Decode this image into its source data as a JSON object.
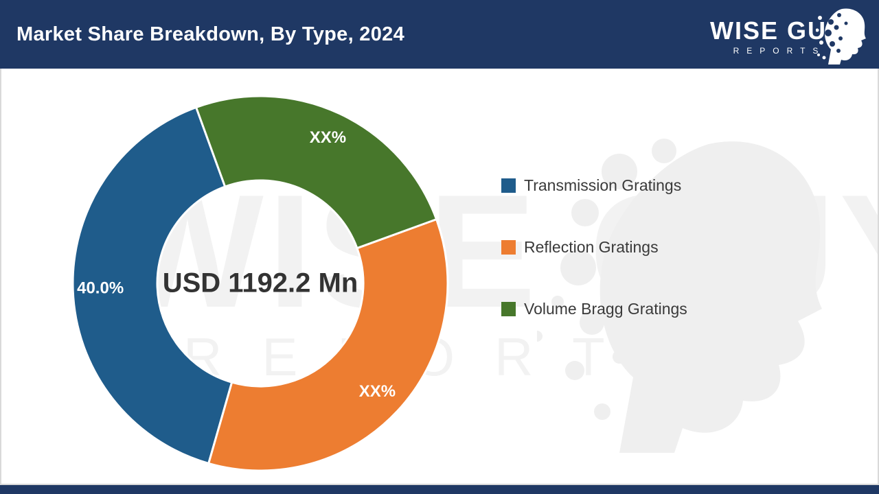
{
  "header": {
    "title": "Market Share Breakdown, By Type, 2024",
    "bg_color": "#1f3864",
    "logo": {
      "line1": "WISE GUY",
      "line2": "REPORTS"
    }
  },
  "watermark": {
    "line1": "WISE GUY",
    "line2": "REPORTS"
  },
  "chart_data": {
    "type": "pie",
    "donut": true,
    "title": "Market Share Breakdown, By Type, 2024",
    "center_label": "USD 1192.2 Mn",
    "categories": [
      "Transmission Gratings",
      "Reflection Gratings",
      "Volume Bragg Gratings"
    ],
    "values": [
      40.0,
      35.0,
      25.0
    ],
    "slice_labels": [
      "40.0%",
      "XX%",
      "XX%"
    ],
    "colors": [
      "#1f5c8b",
      "#ed7d31",
      "#47772b"
    ],
    "start_angle": 110,
    "counterclockwise": true,
    "outer_radius": 273,
    "inner_radius": 150,
    "label_radius": 233,
    "legend_position": "right",
    "slice_label_color": "#ffffff",
    "center_label_color": "#333333"
  },
  "legend": {
    "items": [
      {
        "label": "Transmission Gratings",
        "color": "#1f5c8b"
      },
      {
        "label": "Reflection Gratings",
        "color": "#ed7d31"
      },
      {
        "label": "Volume Bragg Gratings",
        "color": "#47772b"
      }
    ]
  }
}
